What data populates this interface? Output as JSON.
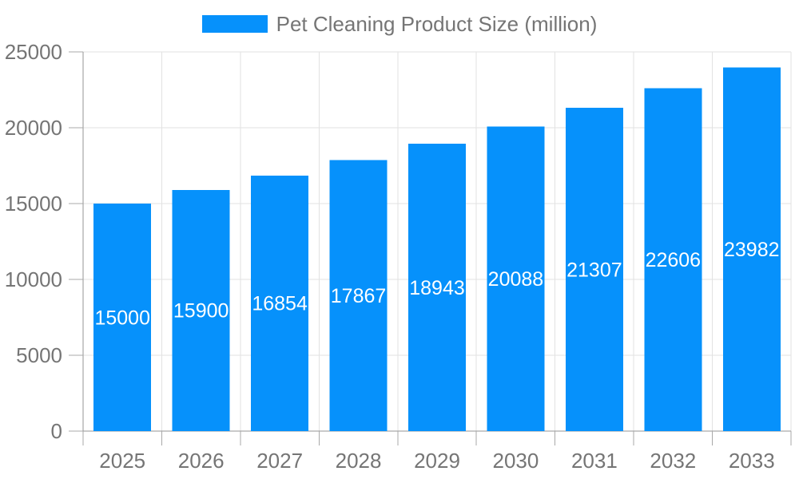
{
  "chart_data": {
    "type": "bar",
    "title": "Pet Cleaning Product Size (million)",
    "legend_entries": [
      "Pet Cleaning Product Size (million)"
    ],
    "legend_position": "top-center",
    "categories": [
      "2025",
      "2026",
      "2027",
      "2028",
      "2029",
      "2030",
      "2031",
      "2032",
      "2033"
    ],
    "series": [
      {
        "name": "Pet Cleaning Product Size (million)",
        "values": [
          15000,
          15900,
          16854,
          17867,
          18943,
          20088,
          21307,
          22606,
          23982
        ]
      }
    ],
    "value_label_style": "inside-center-white",
    "xlabel": "",
    "ylabel": "",
    "ylim": [
      0,
      25000
    ],
    "yticks": [
      0,
      5000,
      10000,
      15000,
      20000,
      25000
    ],
    "grid": "both",
    "colors": {
      "bar": "#0691FB",
      "grid_line": "#e2e2e2",
      "axis_line": "#949494",
      "tick_mark": "#a8a8a8",
      "tick_label": "#757575",
      "legend_text": "#757575",
      "value_label": "#ffffff",
      "background": "#ffffff"
    }
  }
}
